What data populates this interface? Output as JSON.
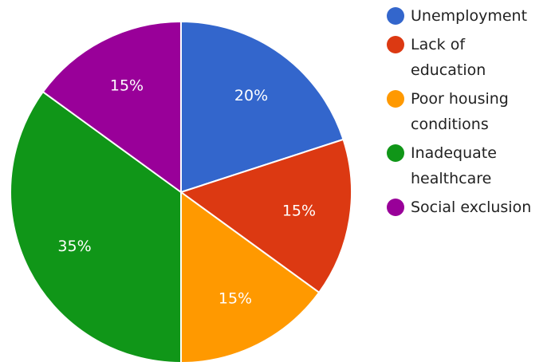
{
  "chart_data": {
    "type": "pie",
    "categories": [
      "Unemployment",
      "Lack of education",
      "Poor housing conditions",
      "Inadequate healthcare",
      "Social exclusion"
    ],
    "values": [
      20,
      15,
      15,
      35,
      15
    ],
    "value_labels": [
      "20%",
      "15%",
      "15%",
      "35%",
      "15%"
    ],
    "colors": [
      "#3366cc",
      "#dc3912",
      "#ff9900",
      "#109618",
      "#990099"
    ],
    "legend": {
      "position": "right",
      "entries": [
        {
          "lines": [
            "Unemployment"
          ]
        },
        {
          "lines": [
            "Lack of",
            "education"
          ]
        },
        {
          "lines": [
            "Poor housing",
            "conditions"
          ]
        },
        {
          "lines": [
            "Inadequate",
            "healthcare"
          ]
        },
        {
          "lines": [
            "Social exclusion"
          ]
        }
      ]
    }
  }
}
